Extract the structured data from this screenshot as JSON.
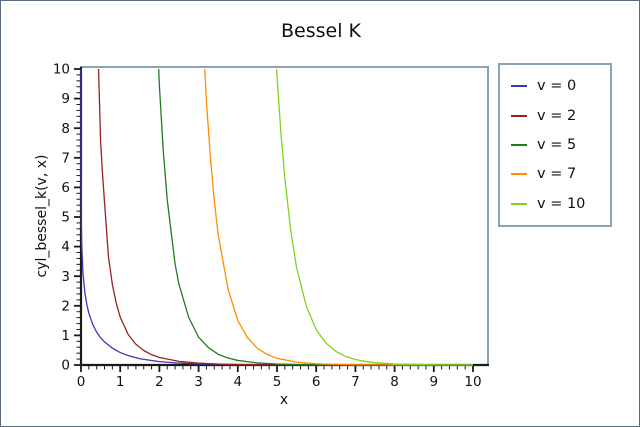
{
  "title": "Bessel K",
  "colors": {
    "outer_border": "#5a6b80",
    "plot_border": "#8aa2b4",
    "axis": "#1a1a1a",
    "text": "#111111",
    "background": "#ffffff"
  },
  "chart_data": {
    "type": "line",
    "title": "Bessel K",
    "xlabel": "x",
    "ylabel": "cyl_bessel_k(v, x)",
    "xlim": [
      0,
      10
    ],
    "ylim": [
      0,
      10
    ],
    "xticks": [
      "0",
      "1",
      "2",
      "3",
      "4",
      "5",
      "6",
      "7",
      "8",
      "9",
      "10"
    ],
    "yticks": [
      "0",
      "1",
      "2",
      "3",
      "4",
      "5",
      "6",
      "7",
      "8",
      "9",
      "10"
    ],
    "minor_tick_step": 0.2,
    "grid": false,
    "legend_position": "outside-right",
    "series": [
      {
        "name": "v = 0",
        "color": "#3939b0",
        "points": [
          [
            5e-05,
            10.5
          ],
          [
            0.001,
            7.02
          ],
          [
            0.003,
            5.92
          ],
          [
            0.01,
            4.72
          ],
          [
            0.02,
            4.03
          ],
          [
            0.05,
            3.11
          ],
          [
            0.1,
            2.43
          ],
          [
            0.15,
            2.03
          ],
          [
            0.2,
            1.75
          ],
          [
            0.3,
            1.37
          ],
          [
            0.4,
            1.11
          ],
          [
            0.5,
            0.92
          ],
          [
            0.6,
            0.78
          ],
          [
            0.8,
            0.57
          ],
          [
            1,
            0.42
          ],
          [
            1.2,
            0.32
          ],
          [
            1.5,
            0.21
          ],
          [
            2,
            0.114
          ],
          [
            2.5,
            0.062
          ],
          [
            3,
            0.035
          ],
          [
            3.5,
            0.02
          ],
          [
            4,
            0.011
          ],
          [
            5,
            0.0037
          ],
          [
            6,
            0.0012
          ],
          [
            7,
            0.0004
          ],
          [
            8,
            0.0001
          ],
          [
            10,
            2e-05
          ]
        ]
      },
      {
        "name": "v = 2",
        "color": "#962222",
        "points": [
          [
            0.42,
            11.3
          ],
          [
            0.45,
            9.88
          ],
          [
            0.5,
            7.55
          ],
          [
            0.55,
            6.43
          ],
          [
            0.6,
            5.5
          ],
          [
            0.7,
            3.66
          ],
          [
            0.8,
            2.72
          ],
          [
            0.9,
            2.08
          ],
          [
            1,
            1.62
          ],
          [
            1.2,
            1.04
          ],
          [
            1.4,
            0.7
          ],
          [
            1.6,
            0.49
          ],
          [
            1.8,
            0.35
          ],
          [
            2,
            0.254
          ],
          [
            2.5,
            0.121
          ],
          [
            3,
            0.062
          ],
          [
            3.5,
            0.032
          ],
          [
            4,
            0.017
          ],
          [
            4.5,
            0.0096
          ],
          [
            5,
            0.0053
          ],
          [
            6,
            0.0017
          ],
          [
            7,
            0.0006
          ],
          [
            8,
            0.0002
          ],
          [
            10,
            2e-05
          ]
        ]
      },
      {
        "name": "v = 5",
        "color": "#1f7d1f",
        "points": [
          [
            1.93,
            11.6
          ],
          [
            2,
            9.43
          ],
          [
            2.1,
            7.21
          ],
          [
            2.2,
            5.58
          ],
          [
            2.4,
            3.41
          ],
          [
            2.5,
            2.72
          ],
          [
            2.75,
            1.6
          ],
          [
            3,
            0.94
          ],
          [
            3.25,
            0.59
          ],
          [
            3.5,
            0.36
          ],
          [
            3.75,
            0.237
          ],
          [
            4,
            0.154
          ],
          [
            4.5,
            0.069
          ],
          [
            5,
            0.033
          ],
          [
            5.5,
            0.016
          ],
          [
            6,
            0.008
          ],
          [
            7,
            0.0022
          ],
          [
            8,
            0.0006
          ],
          [
            9,
            0.0002
          ],
          [
            10,
            6e-05
          ]
        ]
      },
      {
        "name": "v = 7",
        "color": "#ff8c00",
        "points": [
          [
            3.05,
            12.8
          ],
          [
            3.1,
            11.4
          ],
          [
            3.2,
            8.9
          ],
          [
            3.3,
            7.03
          ],
          [
            3.4,
            5.56
          ],
          [
            3.5,
            4.4
          ],
          [
            3.75,
            2.57
          ],
          [
            4,
            1.5
          ],
          [
            4.25,
            0.92
          ],
          [
            4.5,
            0.56
          ],
          [
            4.75,
            0.356
          ],
          [
            5,
            0.226
          ],
          [
            5.5,
            0.097
          ],
          [
            6,
            0.043
          ],
          [
            6.5,
            0.02
          ],
          [
            7,
            0.0095
          ],
          [
            8,
            0.0023
          ],
          [
            9,
            0.0006
          ],
          [
            10,
            0.0002
          ]
        ]
      },
      {
        "name": "v = 10",
        "color": "#7ed321",
        "points": [
          [
            4.92,
            11.8
          ],
          [
            5,
            9.76
          ],
          [
            5.1,
            7.85
          ],
          [
            5.2,
            6.31
          ],
          [
            5.35,
            4.55
          ],
          [
            5.5,
            3.29
          ],
          [
            5.75,
            1.98
          ],
          [
            6,
            1.19
          ],
          [
            6.25,
            0.74
          ],
          [
            6.5,
            0.46
          ],
          [
            6.75,
            0.29
          ],
          [
            7,
            0.185
          ],
          [
            7.25,
            0.12
          ],
          [
            7.5,
            0.079
          ],
          [
            8,
            0.034
          ],
          [
            8.5,
            0.016
          ],
          [
            9,
            0.007
          ],
          [
            9.5,
            0.003
          ],
          [
            10,
            0.0016
          ]
        ]
      }
    ]
  }
}
